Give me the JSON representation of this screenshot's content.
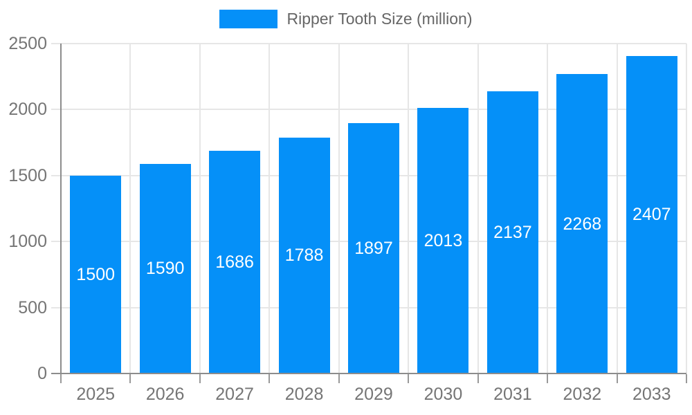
{
  "chart_data": {
    "type": "bar",
    "title": "Ripper Tooth Size (million)",
    "series": [
      {
        "name": "Ripper Tooth Size (million)",
        "values": [
          1500,
          1590,
          1686,
          1788,
          1897,
          2013,
          2137,
          2268,
          2407
        ]
      }
    ],
    "categories": [
      "2025",
      "2026",
      "2027",
      "2028",
      "2029",
      "2030",
      "2031",
      "2032",
      "2033"
    ],
    "xlabel": "",
    "ylabel": "",
    "ylim": [
      0,
      2500
    ],
    "ytick_labels": [
      "0",
      "500",
      "1000",
      "1500",
      "2000",
      "2500"
    ],
    "grid": true,
    "legend_position": "top",
    "value_labels_shown": true,
    "colors": {
      "bar": "#0590f8",
      "grid": "#e6e6e6",
      "axis": "#8c8c8c",
      "x_tick": "#999999",
      "axis_text": "#757575",
      "legend_text": "#666666",
      "value_label_text": "#ffffff",
      "background": "#ffffff"
    }
  }
}
